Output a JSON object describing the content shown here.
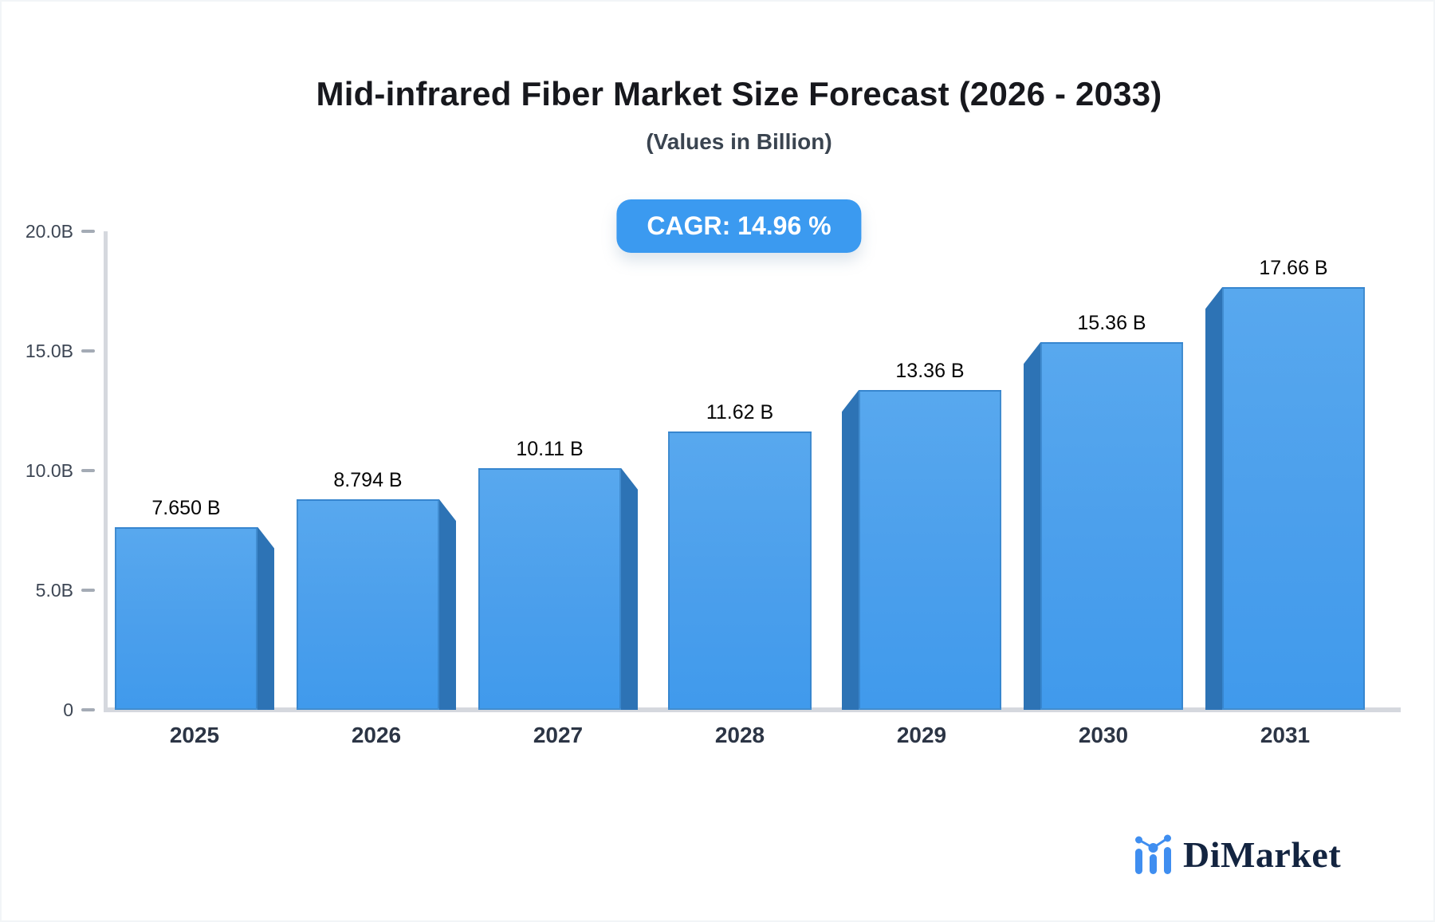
{
  "header": {
    "title": "Mid-infrared Fiber Market Size Forecast (2026 - 2033)",
    "subtitle": "(Values in Billion)",
    "cagr_badge": "CAGR: 14.96 %"
  },
  "logo": {
    "text": "DiMarket",
    "icon": "mini-bar-line-chart-icon"
  },
  "colors": {
    "accent_blue": "#3b9af0",
    "bar_face_top": "#58a8ee",
    "bar_face_bottom": "#409aec",
    "bar_side_dark": "#2d73b5",
    "axis_gray": "#d5d8de",
    "ytick_text": "#3d4654",
    "year_text": "#2c3545",
    "logo_navy": "#132440"
  },
  "chart_data": {
    "type": "bar",
    "title": "Mid-infrared Fiber Market Size Forecast (2026 - 2033)",
    "subtitle": "(Values in Billion)",
    "xlabel": "",
    "ylabel": "",
    "categories": [
      "2025",
      "2026",
      "2027",
      "2028",
      "2029",
      "2030",
      "2031"
    ],
    "values": [
      7.65,
      8.794,
      10.11,
      11.62,
      13.36,
      15.36,
      17.66
    ],
    "value_labels": [
      "7.650 B",
      "8.794 B",
      "10.11 B",
      "11.62 B",
      "13.36 B",
      "15.36 B",
      "17.66 B"
    ],
    "ylim": [
      0,
      20
    ],
    "yticks": [
      {
        "value": 20,
        "label": "20.0B"
      },
      {
        "value": 15,
        "label": "15.0B"
      },
      {
        "value": 10,
        "label": "10.0B"
      },
      {
        "value": 5,
        "label": "5.0B"
      },
      {
        "value": 0,
        "label": "0"
      }
    ],
    "grid": false,
    "legend": null,
    "annotations": [
      "CAGR: 14.96 %"
    ],
    "style": "pseudo-3d bars, bevel faces center of chart"
  }
}
